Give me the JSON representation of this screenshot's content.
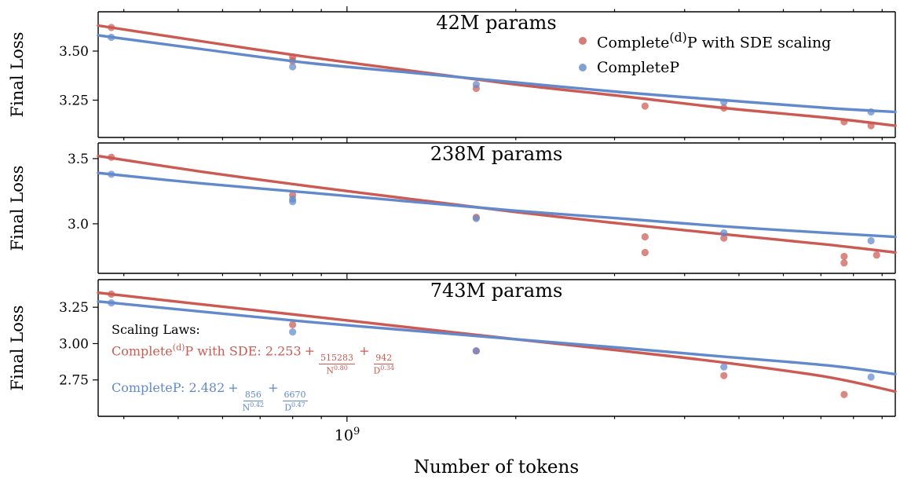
{
  "figure": {
    "ylabel": "Final Loss",
    "xlabel": "Number of tokens",
    "x_axis": {
      "scale": "log",
      "xlim": [
        360000000,
        9500000000
      ],
      "major_ticks": [
        1000000000
      ],
      "major_tick_label": {
        "base": "10",
        "exp": "9"
      },
      "minor_ticks": [
        400000000,
        500000000,
        600000000,
        700000000,
        800000000,
        900000000,
        2000000000,
        3000000000,
        4000000000,
        5000000000,
        6000000000,
        7000000000,
        8000000000,
        9000000000
      ]
    },
    "colors": {
      "sde_red": "#cc5a52",
      "completep_blue": "#6289cc",
      "text": "#000000"
    }
  },
  "legend": {
    "sde": {
      "pre": "Complete",
      "sup": "(d)",
      "post": "P with SDE scaling"
    },
    "completep": {
      "label": "CompleteP"
    }
  },
  "annotation": {
    "title": "Scaling Laws:",
    "plus": "+",
    "red": {
      "pre": "Complete",
      "sup": "(d)",
      "post": "P with SDE: ",
      "const": "2.253",
      "frac1": {
        "num": "515283",
        "den_base": "N",
        "den_exp": "0.80"
      },
      "frac2": {
        "num": "942",
        "den_base": "D",
        "den_exp": "0.34"
      }
    },
    "blue": {
      "pre": "CompleteP: ",
      "const": "2.482",
      "frac1": {
        "num": "856",
        "den_base": "N",
        "den_exp": "0.42"
      },
      "frac2": {
        "num": "6670",
        "den_base": "D",
        "den_exp": "0.47"
      }
    }
  },
  "chart_data": [
    {
      "type": "scatter",
      "title": "42M params",
      "ylim": [
        3.06,
        3.7
      ],
      "yticks": [
        {
          "v": 3.5,
          "label": "3.50"
        },
        {
          "v": 3.25,
          "label": "3.25"
        }
      ],
      "top_spine_ticks": true,
      "series": [
        {
          "name": "Complete(d)P with SDE scaling",
          "color": "#cc5a52",
          "curve_x": [
            360000000,
            550000000,
            850000000,
            1300000000,
            2000000000,
            3100000000,
            4700000000,
            7200000000,
            9500000000
          ],
          "curve_y": [
            3.63,
            3.55,
            3.47,
            3.4,
            3.33,
            3.27,
            3.21,
            3.16,
            3.12
          ],
          "points": [
            [
              380000000,
              3.62
            ],
            [
              800000000,
              3.47
            ],
            [
              800000000,
              3.45
            ],
            [
              1700000000,
              3.31
            ],
            [
              3400000000,
              3.22
            ],
            [
              4700000000,
              3.21
            ],
            [
              7700000000,
              3.14
            ],
            [
              8600000000,
              3.12
            ]
          ]
        },
        {
          "name": "CompleteP",
          "color": "#6289cc",
          "curve_x": [
            360000000,
            550000000,
            850000000,
            1300000000,
            2000000000,
            3100000000,
            4700000000,
            7200000000,
            9500000000
          ],
          "curve_y": [
            3.58,
            3.51,
            3.44,
            3.39,
            3.34,
            3.29,
            3.25,
            3.21,
            3.19
          ],
          "points": [
            [
              380000000,
              3.57
            ],
            [
              800000000,
              3.42
            ],
            [
              1700000000,
              3.33
            ],
            [
              4700000000,
              3.24
            ],
            [
              8600000000,
              3.19
            ]
          ]
        }
      ]
    },
    {
      "type": "scatter",
      "title": "238M params",
      "ylim": [
        2.62,
        3.62
      ],
      "yticks": [
        {
          "v": 3.5,
          "label": "3.5"
        },
        {
          "v": 3.0,
          "label": "3.0"
        }
      ],
      "top_spine_ticks": false,
      "series": [
        {
          "name": "Complete(d)P with SDE scaling",
          "color": "#cc5a52",
          "curve_x": [
            360000000,
            550000000,
            850000000,
            1300000000,
            2000000000,
            3100000000,
            4700000000,
            7200000000,
            9500000000
          ],
          "curve_y": [
            3.52,
            3.4,
            3.29,
            3.19,
            3.09,
            3.0,
            2.92,
            2.84,
            2.78
          ],
          "points": [
            [
              380000000,
              3.51
            ],
            [
              800000000,
              3.22
            ],
            [
              1700000000,
              3.05
            ],
            [
              3400000000,
              2.9
            ],
            [
              3400000000,
              2.78
            ],
            [
              4700000000,
              2.89
            ],
            [
              7700000000,
              2.75
            ],
            [
              7700000000,
              2.7
            ],
            [
              8800000000,
              2.76
            ]
          ]
        },
        {
          "name": "CompleteP",
          "color": "#6289cc",
          "curve_x": [
            360000000,
            550000000,
            850000000,
            1300000000,
            2000000000,
            3100000000,
            4700000000,
            7200000000,
            9500000000
          ],
          "curve_y": [
            3.39,
            3.31,
            3.24,
            3.17,
            3.1,
            3.04,
            2.98,
            2.93,
            2.9
          ],
          "points": [
            [
              380000000,
              3.38
            ],
            [
              800000000,
              3.19
            ],
            [
              800000000,
              3.17
            ],
            [
              1700000000,
              3.04
            ],
            [
              4700000000,
              2.93
            ],
            [
              8600000000,
              2.87
            ]
          ]
        }
      ]
    },
    {
      "type": "scatter",
      "title": "743M params",
      "ylim": [
        2.5,
        3.44
      ],
      "yticks": [
        {
          "v": 3.25,
          "label": "3.25"
        },
        {
          "v": 3.0,
          "label": "3.00"
        },
        {
          "v": 2.75,
          "label": "2.75"
        }
      ],
      "top_spine_ticks": false,
      "series": [
        {
          "name": "Complete(d)P with SDE scaling",
          "color": "#cc5a52",
          "curve_x": [
            360000000,
            550000000,
            850000000,
            1300000000,
            2000000000,
            3100000000,
            4700000000,
            7200000000,
            9500000000
          ],
          "curve_y": [
            3.35,
            3.27,
            3.19,
            3.11,
            3.03,
            2.95,
            2.87,
            2.77,
            2.67
          ],
          "points": [
            [
              380000000,
              3.34
            ],
            [
              800000000,
              3.13
            ],
            [
              1700000000,
              2.95
            ],
            [
              4700000000,
              2.78
            ],
            [
              7700000000,
              2.65
            ]
          ]
        },
        {
          "name": "CompleteP",
          "color": "#6289cc",
          "curve_x": [
            360000000,
            550000000,
            850000000,
            1300000000,
            2000000000,
            3100000000,
            4700000000,
            7200000000,
            9500000000
          ],
          "curve_y": [
            3.29,
            3.22,
            3.15,
            3.09,
            3.03,
            2.97,
            2.91,
            2.85,
            2.79
          ],
          "points": [
            [
              380000000,
              3.28
            ],
            [
              800000000,
              3.08
            ],
            [
              1700000000,
              2.95
            ],
            [
              4700000000,
              2.84
            ],
            [
              8600000000,
              2.77
            ]
          ]
        }
      ]
    }
  ]
}
